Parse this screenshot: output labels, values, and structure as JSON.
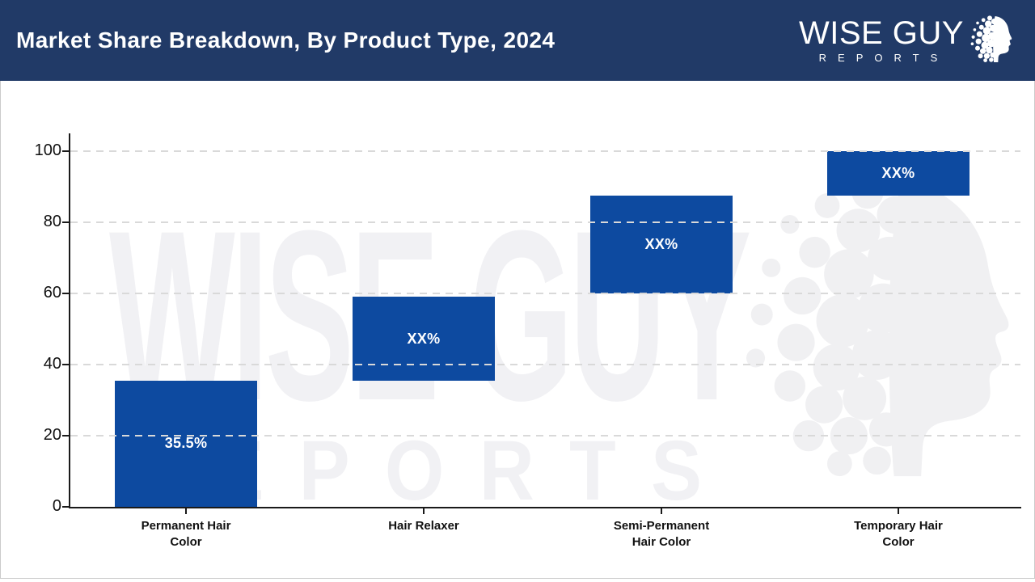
{
  "header": {
    "title": "Market Share Breakdown, By Product Type, 2024",
    "bg_color": "#213a67",
    "logo": {
      "name": "WISE GUY",
      "sub": "REPORTS",
      "head_icon": "dotted-head-profile"
    }
  },
  "watermark": {
    "name": "WISE GUY",
    "sub": "REPORTS",
    "head_icon": "dotted-head-profile"
  },
  "chart_data": {
    "type": "bar",
    "subtype": "waterfall",
    "title": "Market Share Breakdown, By Product Type, 2024",
    "categories": [
      "Permanent Hair Color",
      "Hair Relaxer",
      "Semi-Permanent Hair Color",
      "Temporary Hair Color"
    ],
    "category_label_lines": [
      [
        "Permanent Hair",
        "Color"
      ],
      [
        "Hair Relaxer"
      ],
      [
        "Semi-Permanent",
        "Hair Color"
      ],
      [
        "Temporary Hair",
        "Color"
      ]
    ],
    "segments": [
      {
        "category": "Permanent Hair Color",
        "start": 0,
        "end": 35.5,
        "label": "35.5%"
      },
      {
        "category": "Hair Relaxer",
        "start": 35.5,
        "end": 59,
        "label": "XX%"
      },
      {
        "category": "Semi-Permanent Hair Color",
        "start": 60,
        "end": 87.5,
        "label": "XX%"
      },
      {
        "category": "Temporary Hair Color",
        "start": 87.5,
        "end": 100,
        "label": "XX%"
      }
    ],
    "ylim": [
      0,
      100
    ],
    "yticks": [
      0,
      20,
      40,
      60,
      80,
      100
    ],
    "xlabel": "",
    "ylabel": "",
    "legend": "none",
    "grid": "horizontal-dashed-over-bars",
    "bar_color": "#0d4aa0",
    "bar_label_color": "#ffffff",
    "axis_color": "#1a1a1a",
    "grid_color": "#d9d9d9"
  }
}
